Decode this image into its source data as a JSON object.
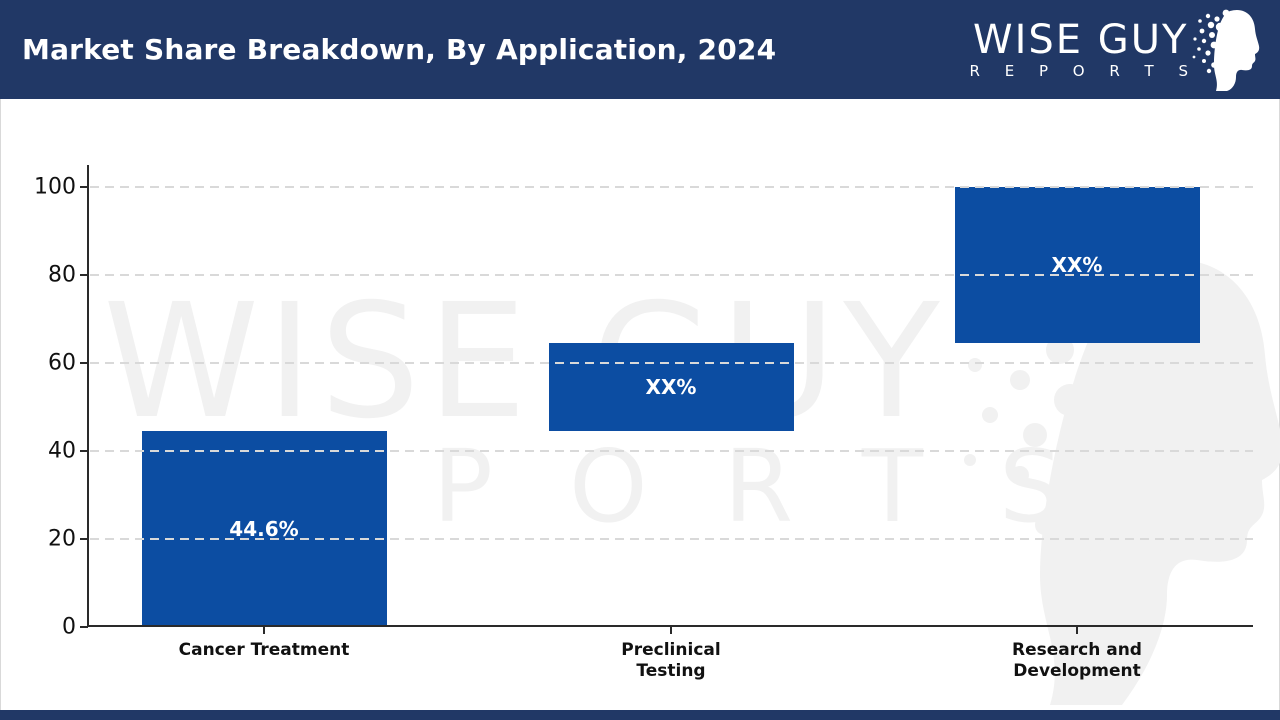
{
  "header": {
    "title": "Market Share Breakdown, By Application, 2024",
    "logo": {
      "name": "WISE GUY",
      "sub": "R E P O R T S"
    }
  },
  "watermark": {
    "line1": "WISE GUY",
    "line2": "REPORTS"
  },
  "colors": {
    "header_navy": "#213866",
    "bar_blue": "#0c4da2",
    "grid_gray": "#d9d9d9",
    "watermark_gray": "#f1f1f1"
  },
  "chart_data": {
    "type": "bar",
    "subtype": "floating-waterfall",
    "title": "Market Share Breakdown, By Application, 2024",
    "xlabel": "",
    "ylabel": "",
    "categories": [
      "Cancer Treatment",
      "Preclinical\nTesting",
      "Research and\nDevelopment"
    ],
    "segments": [
      {
        "category": "Cancer Treatment",
        "start": 0,
        "end": 44.6,
        "label": "44.6%"
      },
      {
        "category": "Preclinical Testing",
        "start": 44.6,
        "end": 64.5,
        "label": "XX%"
      },
      {
        "category": "Research and Development",
        "start": 64.5,
        "end": 100,
        "label": "XX%"
      }
    ],
    "yticks": [
      0,
      20,
      40,
      60,
      80,
      100
    ],
    "ylim": [
      0,
      105
    ],
    "grid": "horizontal-dashed",
    "legend": "none",
    "bar_color": "#0c4da2",
    "bar_label_color": "#ffffff"
  }
}
